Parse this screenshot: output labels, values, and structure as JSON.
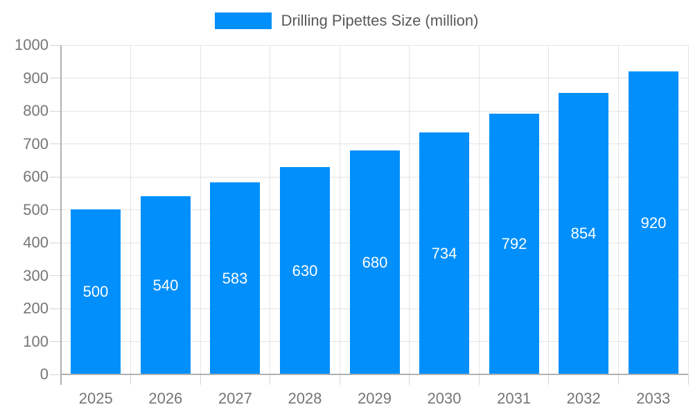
{
  "legend": {
    "position": "top",
    "items": [
      {
        "label": "Drilling Pipettes Size (million)",
        "color": "#008FFB"
      }
    ]
  },
  "chart_data": {
    "type": "bar",
    "categories": [
      "2025",
      "2026",
      "2027",
      "2028",
      "2029",
      "2030",
      "2031",
      "2032",
      "2033"
    ],
    "series": [
      {
        "name": "Drilling Pipettes Size (million)",
        "values": [
          500,
          540,
          583,
          630,
          680,
          734,
          792,
          854,
          920
        ],
        "color": "#008FFB"
      }
    ],
    "title": "",
    "xlabel": "",
    "ylabel": "",
    "ylim": [
      0,
      1000
    ],
    "ytick_step": 100,
    "yticks": [
      0,
      100,
      200,
      300,
      400,
      500,
      600,
      700,
      800,
      900,
      1000
    ],
    "grid": true,
    "legend_position": "top",
    "value_labels": {
      "show": true,
      "position": "center",
      "color": "#ffffff"
    }
  },
  "colors": {
    "bar": "#008FFB",
    "grid_line": "#e4e4e4",
    "tick_line": "#d4d4d4",
    "axis_line": "#b0b0b0",
    "axis_label": "#757575",
    "legend_text": "#595959",
    "value_label": "#ffffff",
    "background": "#ffffff"
  }
}
